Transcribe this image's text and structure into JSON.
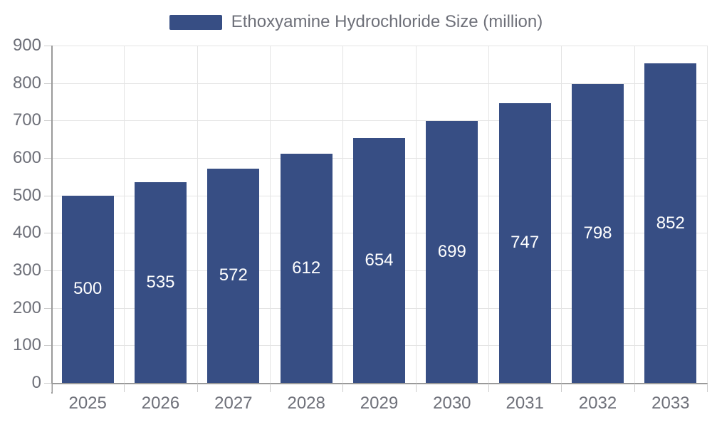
{
  "chart_data": {
    "type": "bar",
    "title": "Ethoxyamine Hydrochloride Size (million)",
    "legend": [
      "Ethoxyamine Hydrochloride Size (million)"
    ],
    "legend_position": "top-center",
    "categories": [
      "2025",
      "2026",
      "2027",
      "2028",
      "2029",
      "2030",
      "2031",
      "2032",
      "2033"
    ],
    "values": [
      500,
      535,
      572,
      612,
      654,
      699,
      747,
      798,
      852
    ],
    "xlabel": "",
    "ylabel": "",
    "ylim": [
      0,
      900
    ],
    "ytick_step": 100,
    "grid": true,
    "style": {
      "bar_color": "#374e84",
      "value_label_color": "#ffffff",
      "grid_color": "#e4e4e4",
      "axis_line_color": "#9a9a9a",
      "tick_mark_color": "#cccccc",
      "tick_label_color": "#6e7079",
      "background_color": "#ffffff"
    }
  }
}
